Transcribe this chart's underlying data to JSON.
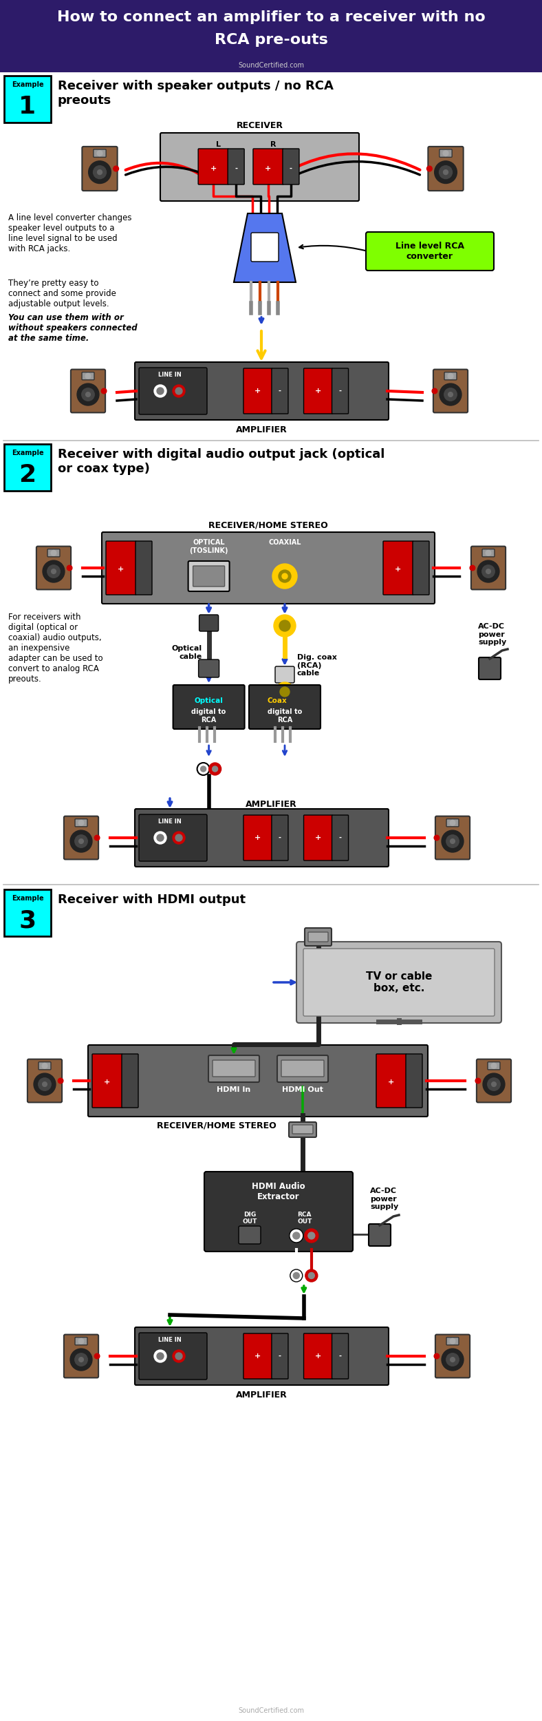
{
  "title_line1": "How to connect an amplifier to a receiver with no",
  "title_line2": "RCA pre-outs",
  "subtitle": "SoundCertified.com",
  "footer": "SoundCertified.com",
  "header_bg": "#2d1b69",
  "bg_color": "#ffffff",
  "cyan_color": "#00ffff",
  "example1_title": "Receiver with speaker outputs / no RCA\npreouts",
  "example1_receiver_label": "RECEIVER",
  "example1_amplifier_label": "AMPLIFIER",
  "example1_converter_label": "Line level RCA\nconverter",
  "example1_text1": "A line level converter changes\nspeaker level outputs to a\nline level signal to be used\nwith RCA jacks.",
  "example1_text2": "They’re pretty easy to\nconnect and some provide\nadjustable output levels.",
  "example1_text3": "You can use them with or\nwithout speakers connected\nat the same time.",
  "example2_title": "Receiver with digital audio output jack (optical\nor coax type)",
  "example2_receiver_label": "RECEIVER/HOME STEREO",
  "example2_amplifier_label": "AMPLIFIER",
  "example2_optical_cable_label": "Optical\ncable",
  "example2_coax_cable_label": "Dig. coax\n(RCA)\ncable",
  "example2_adapter1_label_cyan": "Optical",
  "example2_adapter1_label_white": "digital to\nRCA",
  "example2_adapter2_label_yellow": "Coax",
  "example2_adapter2_label_white": "digital to\nRCA",
  "example2_power_label": "AC-DC\npower\nsupply",
  "example2_text": "For receivers with\ndigital (optical or\ncoaxial) audio outputs,\nan inexpensive\nadapter can be used to\nconvert to analog RCA\npreouts.",
  "example3_title": "Receiver with HDMI output",
  "example3_tv_label": "TV or cable\nbox, etc.",
  "example3_receiver_label": "RECEIVER/HOME STEREO",
  "example3_hdmi_in_label": "HDMI In",
  "example3_hdmi_out_label": "HDMI Out",
  "example3_extractor_title": "HDMI Audio\nExtractor",
  "example3_dig_out_label": "DIG\nOUT",
  "example3_rca_out_label": "RCA\nOUT",
  "example3_power_label": "AC-DC\npower\nsupply",
  "example3_amplifier_label": "AMPLIFIER",
  "speaker_brown": "#8B5E3C",
  "red": "#cc0000",
  "dark_gray": "#555555",
  "mid_gray": "#808080",
  "light_gray": "#aaaaaa"
}
